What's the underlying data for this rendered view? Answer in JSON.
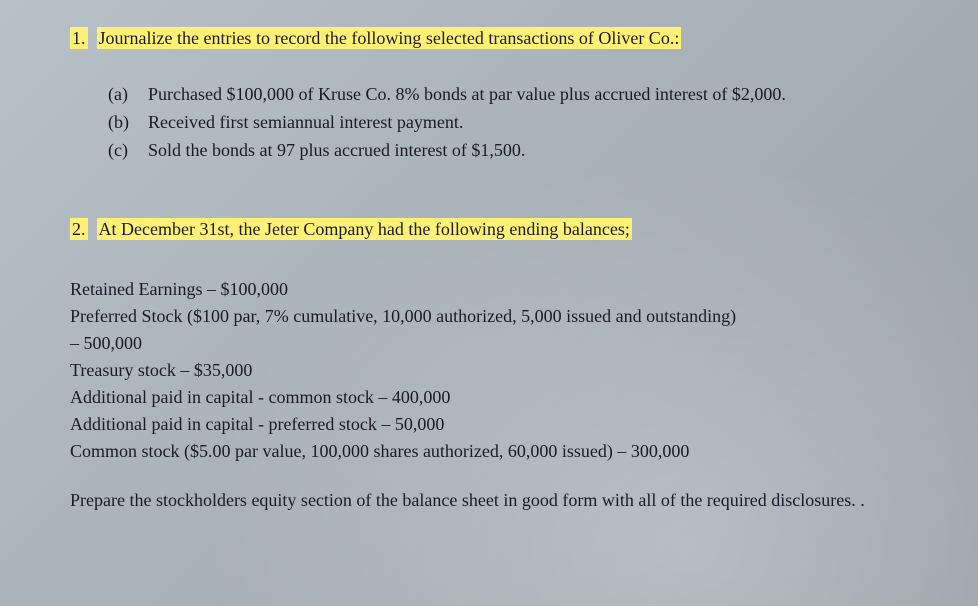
{
  "highlight_color": "#fff176",
  "text_color": "#1a1a2a",
  "q1": {
    "number": "1.",
    "heading": "Journalize the entries to record the following selected transactions of Oliver Co.:",
    "items": [
      {
        "letter": "(a)",
        "text": "Purchased $100,000 of Kruse Co. 8% bonds at par value plus accrued interest of $2,000."
      },
      {
        "letter": "(b)",
        "text": "Received first semiannual interest payment."
      },
      {
        "letter": "(c)",
        "text": "Sold the bonds at 97 plus accrued interest of $1,500."
      }
    ]
  },
  "q2": {
    "number": "2.",
    "heading": "At December 31st, the Jeter Company had the following ending balances;",
    "balances": [
      "Retained Earnings – $100,000",
      "Preferred Stock ($100 par, 7% cumulative, 10,000 authorized, 5,000 issued and outstanding)",
      "– 500,000",
      "Treasury stock – $35,000",
      "Additional paid in capital - common stock – 400,000",
      "Additional paid in capital - preferred stock – 50,000",
      "Common stock ($5.00 par value, 100,000 shares authorized, 60,000 issued) – 300,000"
    ],
    "instruction": "Prepare the stockholders equity section of the balance sheet in good form with all of the required disclosures. ."
  }
}
